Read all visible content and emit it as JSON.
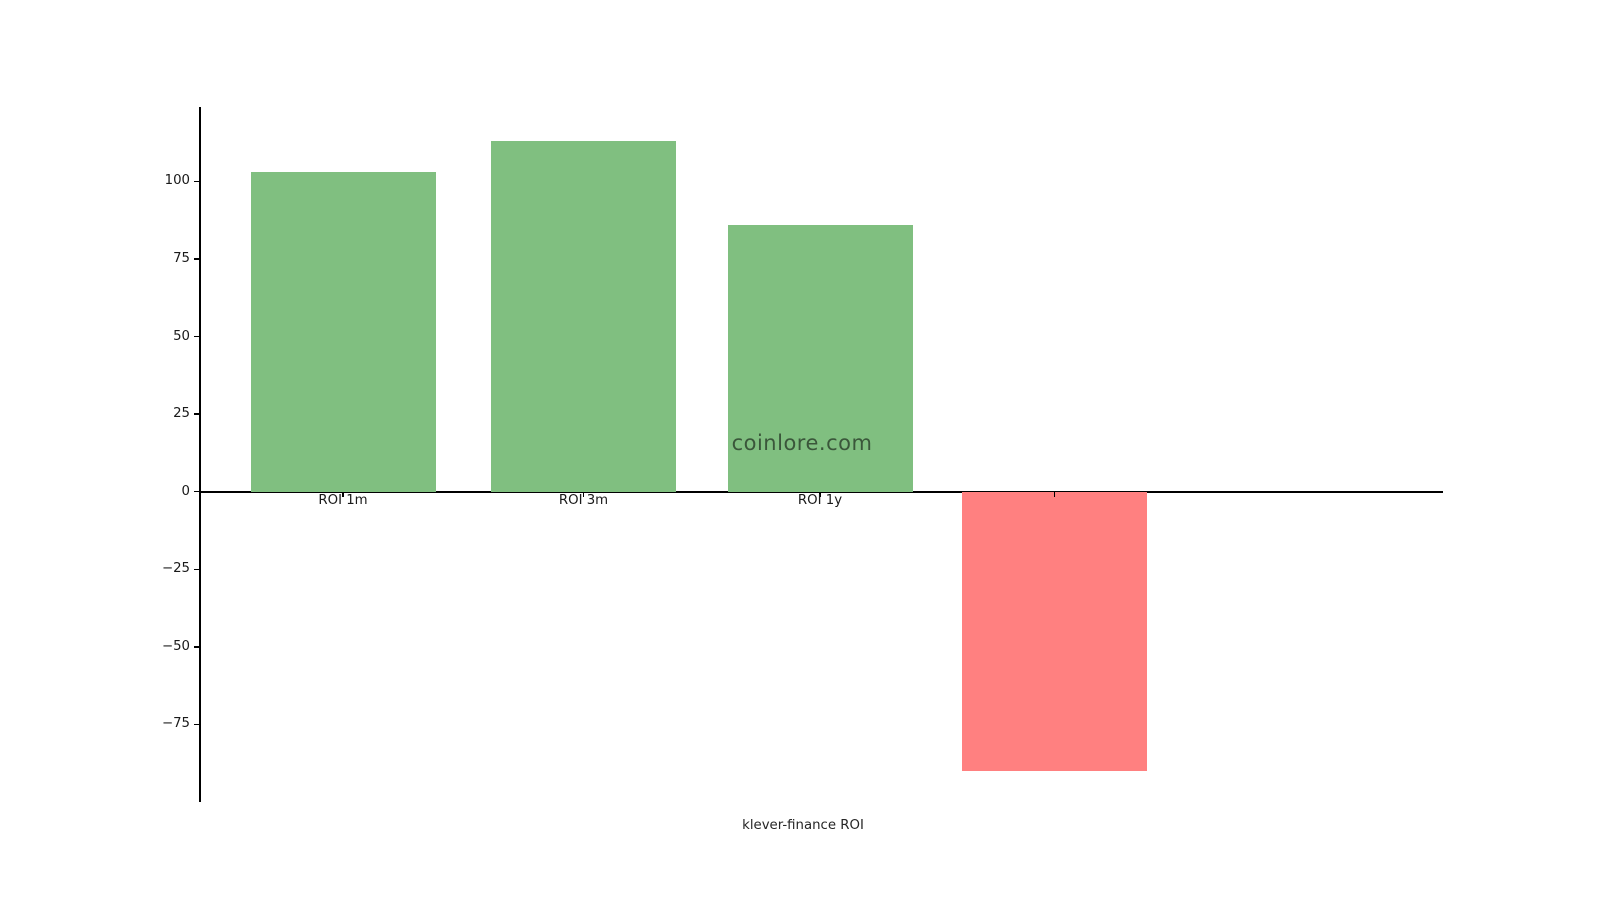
{
  "watermark": "coinlore.com",
  "chart_data": {
    "type": "bar",
    "title": "",
    "xlabel": "klever-finance ROI",
    "ylabel": "",
    "categories": [
      "ROI 1m",
      "ROI 3m",
      "ROI 1y",
      ""
    ],
    "values": [
      103,
      113,
      86,
      -90
    ],
    "ylim": [
      -100,
      124
    ],
    "yticks": [
      100,
      75,
      50,
      25,
      0,
      -25,
      -50,
      -75
    ],
    "ytick_labels": [
      "100",
      "75",
      "50",
      "25",
      "0",
      "−25",
      "−50",
      "−75"
    ],
    "positive_color": "#80bf80",
    "negative_color": "#ff8080",
    "axis_color": "#000000",
    "grid": false,
    "legend": false,
    "bar_count": 4
  }
}
